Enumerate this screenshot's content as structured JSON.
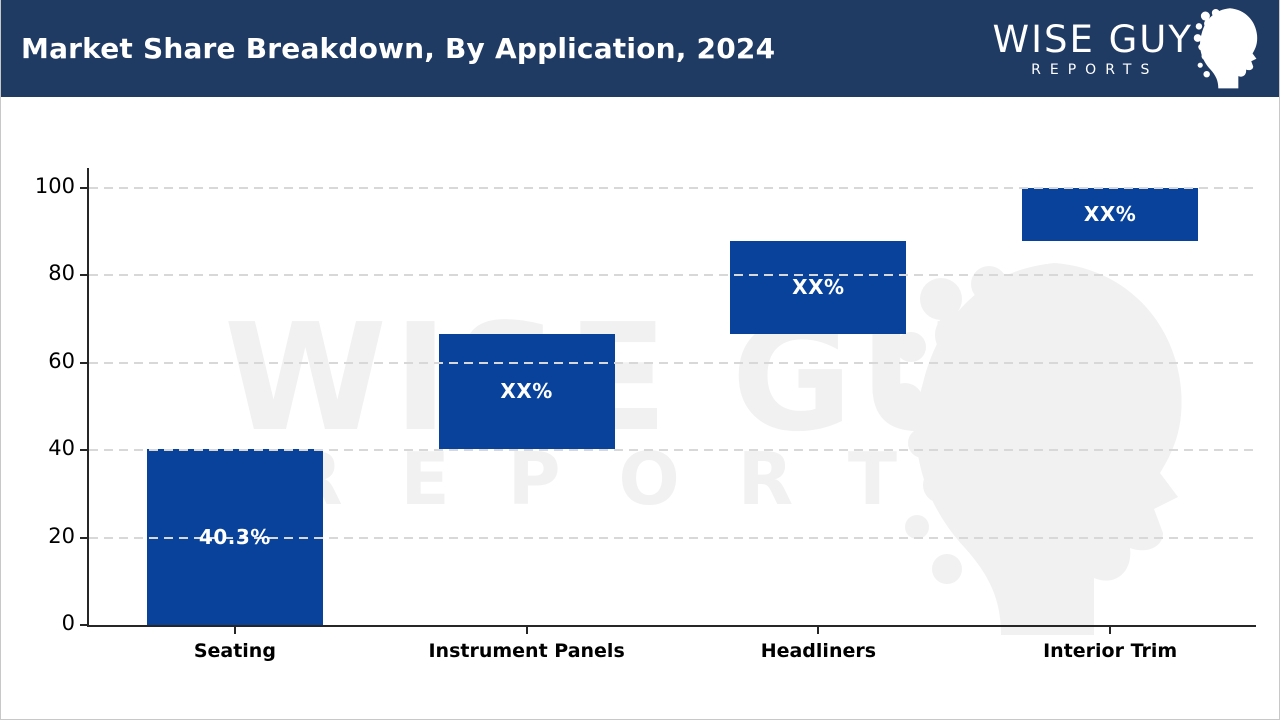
{
  "header": {
    "title": "Market Share Breakdown, By Application, 2024",
    "logo_line1": "WISE GUY",
    "logo_line2": "REPORTS"
  },
  "watermark": {
    "line1": "WISE GUY",
    "line2": "REPORTS"
  },
  "colors": {
    "header_bg": "#1f3a63",
    "bar": "#08429b",
    "grid": "#d8d8d8",
    "axis": "#262626",
    "bar_label": "#ffffff",
    "watermark": "#f1f1f1",
    "page_border": "#c8c8c8"
  },
  "chart_data": {
    "type": "bar",
    "subtype": "waterfall",
    "title": "Market Share Breakdown, By Application, 2024",
    "categories": [
      "Seating",
      "Instrument Panels",
      "Headliners",
      "Interior Trim"
    ],
    "segments": [
      {
        "category": "Seating",
        "start": 0,
        "end": 40.3,
        "label": "40.3%"
      },
      {
        "category": "Instrument Panels",
        "start": 40.3,
        "end": 66.6,
        "label": "XX%"
      },
      {
        "category": "Headliners",
        "start": 66.6,
        "end": 87.8,
        "label": "XX%"
      },
      {
        "category": "Interior Trim",
        "start": 87.8,
        "end": 100,
        "label": "XX%"
      }
    ],
    "yticks": [
      0,
      20,
      40,
      60,
      80,
      100
    ],
    "ylim": [
      0,
      105
    ],
    "xlabel": "",
    "ylabel": "",
    "grid": "horizontal-dashed-above-bars",
    "legend": "none"
  }
}
